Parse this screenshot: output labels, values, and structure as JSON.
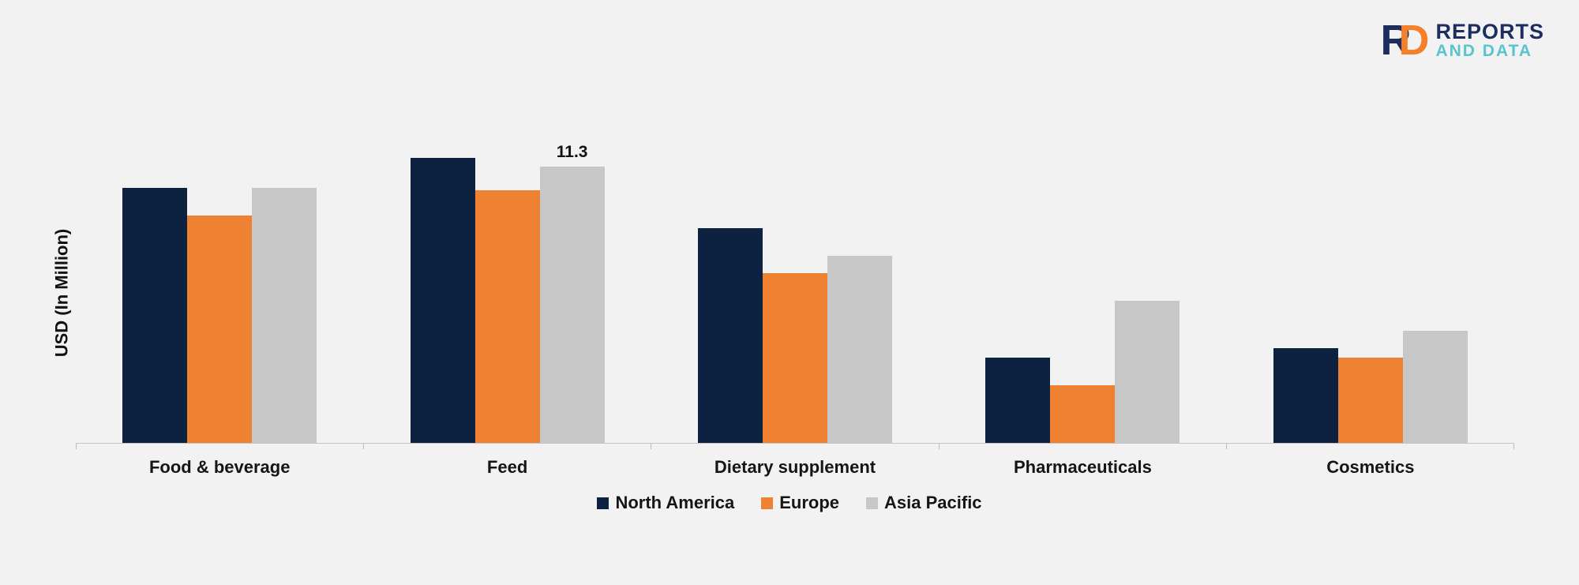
{
  "logo": {
    "mark_r": "R",
    "mark_d": "D",
    "line1": "REPORTS",
    "line2": "AND DATA",
    "navy": "#1c2d5e",
    "orange": "#f4802a",
    "teal": "#56c5d0"
  },
  "chart_data": {
    "type": "bar",
    "title": "",
    "xlabel": "",
    "ylabel": "USD (In Million)",
    "ylim": [
      0,
      12
    ],
    "grid": false,
    "legend_position": "bottom",
    "categories": [
      "Food & beverage",
      "Feed",
      "Dietary supplement",
      "Pharmaceuticals",
      "Cosmetics"
    ],
    "series": [
      {
        "name": "North America",
        "color": "#0d2240",
        "values": [
          10.2,
          11.4,
          8.6,
          3.4,
          3.8
        ]
      },
      {
        "name": "Europe",
        "color": "#ef8133",
        "values": [
          9.1,
          10.1,
          6.8,
          2.3,
          3.4
        ]
      },
      {
        "name": "Asia Pacific",
        "color": "#c7c7c7",
        "values": [
          10.2,
          11.3,
          7.5,
          5.7,
          4.5
        ]
      }
    ],
    "annotations": [
      {
        "series": "Asia Pacific",
        "category": "Feed",
        "text": "11.3"
      }
    ]
  }
}
